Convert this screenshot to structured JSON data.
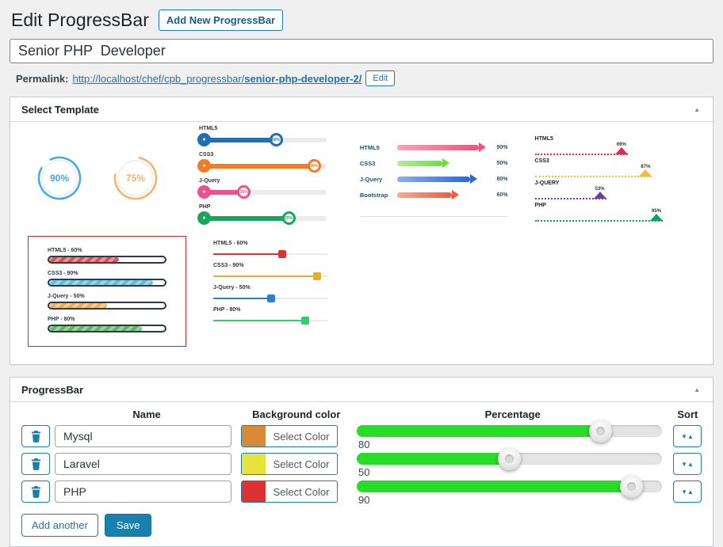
{
  "page": {
    "title": "Edit ProgressBar",
    "add_new_button": "Add New ProgressBar",
    "post_title": "Senior PHP  Developer",
    "permalink": {
      "label": "Permalink:",
      "url_base": "http://localhost/chef/cpb_progressbar/",
      "url_slug": "senior-php-developer-2/",
      "edit_button": "Edit"
    }
  },
  "select_template_panel": {
    "title": "Select Template",
    "collapse_icon": "▲",
    "templates": {
      "circles": [
        {
          "label": "90%",
          "value": 90,
          "color": "#45a7e6"
        },
        {
          "label": "75%",
          "value": 75,
          "color": "#f5b06a"
        }
      ],
      "slider_circles": {
        "items": [
          {
            "label": "HTML5",
            "pct_label": "60%",
            "value": 60,
            "color": "#1f6fb2"
          },
          {
            "label": "CSS3",
            "pct_label": "90%",
            "value": 90,
            "color": "#f47b20"
          },
          {
            "label": "J-Query",
            "pct_label": "35%",
            "value": 35,
            "color": "#f0508c"
          },
          {
            "label": "PHP",
            "pct_label": "70%",
            "value": 70,
            "color": "#18a65d"
          }
        ]
      },
      "arrows": {
        "items": [
          {
            "label": "HTML5",
            "pct_label": "90%",
            "value": 90,
            "color": "#fb4f79"
          },
          {
            "label": "CSS3",
            "pct_label": "50%",
            "value": 50,
            "color": "#6edd3e"
          },
          {
            "label": "J-Query",
            "pct_label": "80%",
            "value": 80,
            "color": "#2168e8"
          },
          {
            "label": "Bootstrap",
            "pct_label": "60%",
            "value": 60,
            "color": "#f55b38"
          }
        ]
      },
      "dotted": {
        "items": [
          {
            "label": "HTML5",
            "pct_label": "69%",
            "value": 69,
            "color": "#e8274b"
          },
          {
            "label": "CSS3",
            "pct_label": "87%",
            "value": 87,
            "color": "#fdb92c"
          },
          {
            "label": "J-QUERY",
            "pct_label": "53%",
            "value": 53,
            "color": "#6b3fa0"
          },
          {
            "label": "PHP",
            "pct_label": "95%",
            "value": 95,
            "color": "#00a562"
          }
        ]
      },
      "striped": {
        "selected": true,
        "border_color": "#c32c2c",
        "items": [
          {
            "label": "HTML5 - 60%",
            "value": 60,
            "color": "#d9534f"
          },
          {
            "label": "CSS3 - 90%",
            "value": 90,
            "color": "#5bc0de"
          },
          {
            "label": "J-Query - 50%",
            "value": 50,
            "color": "#f0ad4e"
          },
          {
            "label": "PHP - 80%",
            "value": 80,
            "color": "#5cb85c"
          }
        ]
      },
      "thin_sliders": {
        "items": [
          {
            "label": "HTML5 - 60%",
            "value": 60,
            "color": "#e03131"
          },
          {
            "label": "CSS3 - 90%",
            "value": 90,
            "color": "#dbb32d"
          },
          {
            "label": "J-Query - 50%",
            "value": 50,
            "color": "#2b7fd4"
          },
          {
            "label": "PHP - 80%",
            "value": 80,
            "color": "#2fcf6e"
          }
        ]
      }
    }
  },
  "progressbar_panel": {
    "title": "ProgressBar",
    "collapse_icon": "▲",
    "columns": [
      "Name",
      "Background color",
      "Percentage",
      "Sort"
    ],
    "select_color_label": "Select Color",
    "sort_icon": "▼▲",
    "rows": [
      {
        "name": "Mysql",
        "color": "#d78b36",
        "percentage": 80
      },
      {
        "name": "Laravel",
        "color": "#e7e23c",
        "percentage": 50
      },
      {
        "name": "PHP",
        "color": "#dc3232",
        "percentage": 90
      }
    ],
    "add_another_button": "Add another",
    "save_button": "Save"
  },
  "colors": {
    "accent_blue": "#1a7dab",
    "link_blue": "#2271b1",
    "slider_green": "#27dd27",
    "selected_template_border": "#c32c2c",
    "page_background": "#f0f0f1"
  }
}
